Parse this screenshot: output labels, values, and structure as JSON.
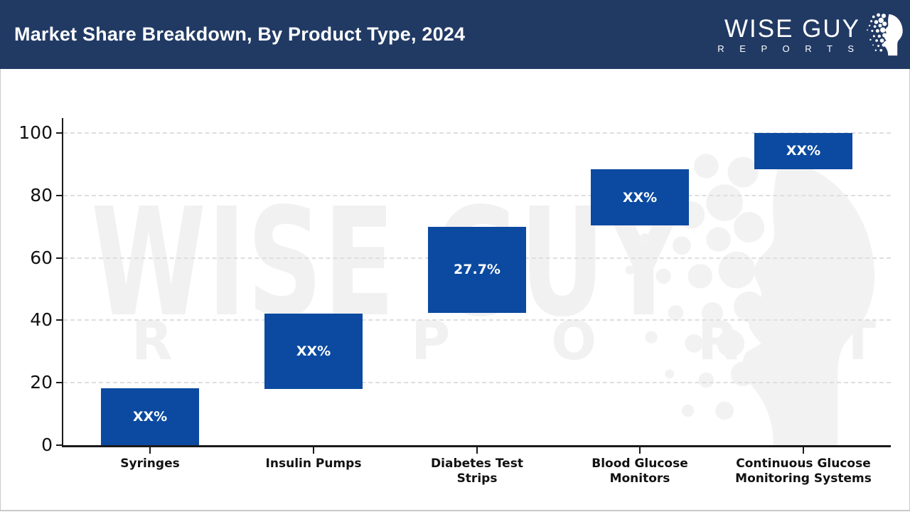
{
  "header": {
    "title": "Market Share Breakdown, By Product Type, 2024",
    "bg_color": "#213a64",
    "logo": {
      "line1": "WISE GUY",
      "line2": "R E P O R T S"
    }
  },
  "watermark": {
    "line1": "WISE GUY",
    "line2": "R E P O R T S"
  },
  "chart_data": {
    "type": "bar",
    "subtype": "floating-segment-waterfall",
    "title": "Market Share Breakdown, By Product Type, 2024",
    "xlabel": "",
    "ylabel": "",
    "ylim": [
      0,
      104
    ],
    "yticks": [
      0,
      20,
      40,
      60,
      80,
      100
    ],
    "grid": "horizontal-dashed",
    "legend": "none",
    "bar_color": "#0b4aa0",
    "bar_label_color": "#ffffff",
    "categories": [
      "Syringes",
      "Insulin Pumps",
      "Diabetes Test\nStrips",
      "Blood Glucose\nMonitors",
      "Continuous Glucose\nMonitoring Systems"
    ],
    "bars": [
      {
        "category": "Syringes",
        "from": 0,
        "to": 18.2,
        "label": "XX%"
      },
      {
        "category": "Insulin Pumps",
        "from": 18.0,
        "to": 42.2,
        "label": "XX%"
      },
      {
        "category": "Diabetes Test Strips",
        "from": 42.3,
        "to": 70.0,
        "label": "27.7%"
      },
      {
        "category": "Blood Glucose Monitors",
        "from": 70.3,
        "to": 88.3,
        "label": "XX%"
      },
      {
        "category": "Continuous Glucose Monitoring Systems",
        "from": 88.4,
        "to": 100.0,
        "label": "XX%"
      }
    ]
  }
}
